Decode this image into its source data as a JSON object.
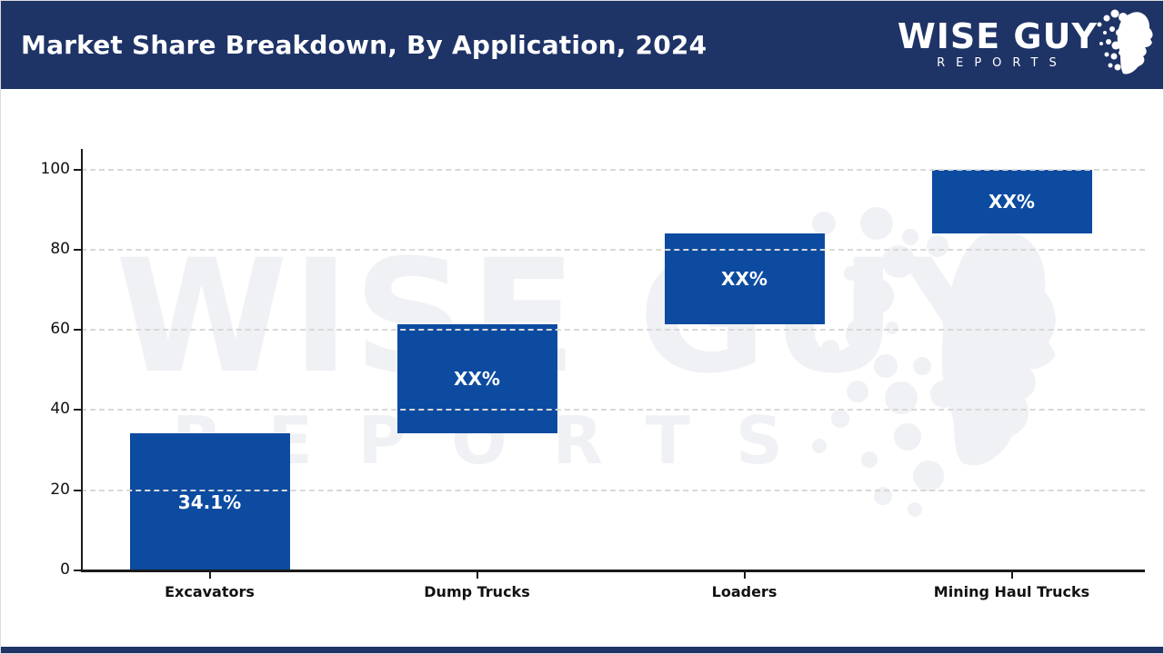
{
  "header": {
    "title": "Market Share Breakdown, By Application, 2024",
    "logo": {
      "line1": "WISE GUY",
      "line2": "REPORTS"
    }
  },
  "watermark": {
    "line1": "WISE GUY",
    "line2": "REPORTS"
  },
  "footer": {
    "present": "true"
  },
  "colors": {
    "header_bg": "#1e3366",
    "footer_bg": "#1e3366",
    "bar": "#0c4ba0",
    "grid": "#d8d8d8",
    "axis": "#1a1a1a",
    "bar_label": "#ffffff",
    "watermark": "#f0f1f4"
  },
  "chart_data": {
    "type": "bar",
    "subtype": "waterfall",
    "title": "Market Share Breakdown, By Application, 2024",
    "categories": [
      "Excavators",
      "Dump Trucks",
      "Loaders",
      "Mining Haul Trucks"
    ],
    "series": [
      {
        "name": "Market Share",
        "segments": [
          {
            "category": "Excavators",
            "start": 0,
            "end": 34.1,
            "label": "34.1%"
          },
          {
            "category": "Dump Trucks",
            "start": 34.1,
            "end": 61.3,
            "label": "XX%"
          },
          {
            "category": "Loaders",
            "start": 61.3,
            "end": 84.0,
            "label": "XX%"
          },
          {
            "category": "Mining Haul Trucks",
            "start": 84.0,
            "end": 100.0,
            "label": "XX%"
          }
        ]
      }
    ],
    "xlabel": "",
    "ylabel": "",
    "ylim": [
      0,
      100
    ],
    "yticks": [
      0,
      20,
      40,
      60,
      80,
      100
    ],
    "grid": "horizontal-dashed",
    "legend": "none",
    "bar_color": "#0c4ba0"
  }
}
